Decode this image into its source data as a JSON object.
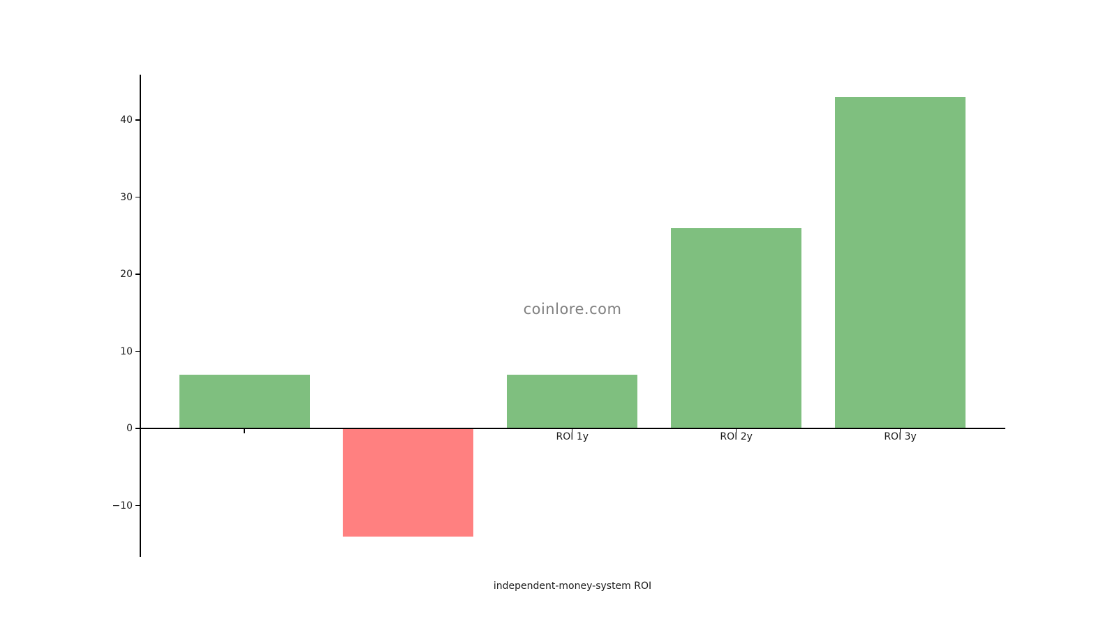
{
  "chart_data": {
    "type": "bar",
    "title": "",
    "xlabel": "independent-money-system ROI",
    "ylabel": "",
    "watermark": "coinlore.com",
    "categories": [
      "",
      "",
      "ROI 1y",
      "ROI 2y",
      "ROI 3y"
    ],
    "values": [
      7,
      -14,
      7,
      26,
      43
    ],
    "bar_colors": [
      "#7fbf7f",
      "#ff8080",
      "#7fbf7f",
      "#7fbf7f",
      "#7fbf7f"
    ],
    "positive_color": "#7fbf7f",
    "negative_color": "#ff8080",
    "y_tick_values": [
      -10,
      0,
      10,
      20,
      30,
      40
    ],
    "y_tick_labels": [
      "−10",
      "0",
      "10",
      "20",
      "30",
      "40"
    ],
    "ylim": [
      -16.6,
      45.9
    ],
    "grid": false,
    "legend_position": "none",
    "background": "#ffffff",
    "axis_color": "#000000",
    "text_color": "#1a1a1a",
    "watermark_color": "#808080"
  }
}
